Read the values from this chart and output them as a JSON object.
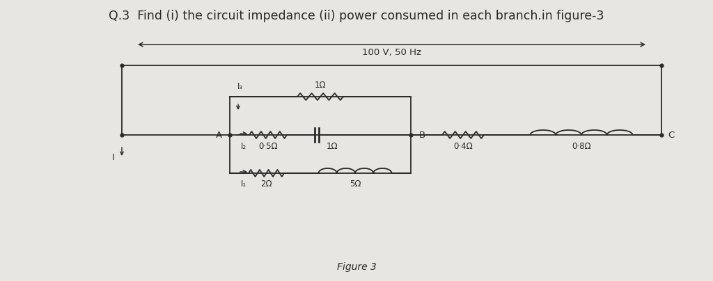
{
  "title": "Q.3  Find (i) the circuit impedance (ii) power consumed in each branch.in figure-3",
  "title_fontsize": 12.5,
  "figure_caption": "Figure 3",
  "bg_color": "#e8e6e2",
  "fg_color": "#2a2a2a",
  "voltage_label": "100 V, 50 Hz",
  "node_A_label": "A",
  "node_B_label": "B",
  "node_C_label": "C",
  "current_I_label": "I",
  "branch1_cur": "I₁",
  "branch1_r": "2Ω",
  "branch1_l": "5Ω",
  "branch2_cur": "I₂",
  "branch2_r": "0·5Ω",
  "branch2_c": "1Ω",
  "branch3_cur": "I₃",
  "branch3_r": "1Ω",
  "series_r": "0·4Ω",
  "series_l": "0·8Ω"
}
